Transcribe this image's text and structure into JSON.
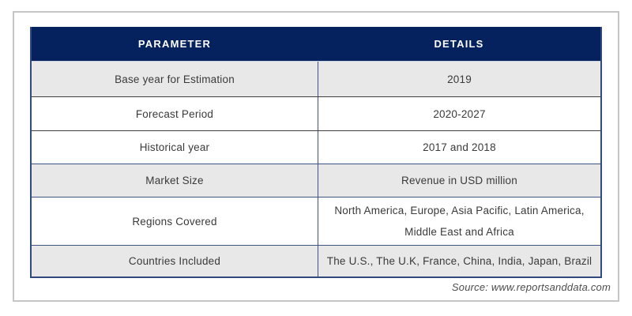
{
  "page": {
    "source_attribution": "Source: www.reportsanddata.com"
  },
  "table": {
    "header": {
      "parameter": "PARAMETER",
      "details": "DETAILS"
    },
    "rows": [
      {
        "parameter": "Base year for Estimation",
        "details": "2019"
      },
      {
        "parameter": "Forecast Period",
        "details": "2020-2027"
      },
      {
        "parameter": "Historical year",
        "details": "2017 and 2018"
      },
      {
        "parameter": "Market Size",
        "details": "Revenue in USD million"
      },
      {
        "parameter": "Regions Covered",
        "details": "North America, Europe, Asia Pacific, Latin America, Middle East and Africa"
      },
      {
        "parameter": "Countries Included",
        "details": "The U.S., The  U.K, France, China, India, Japan, Brazil"
      }
    ]
  },
  "colors": {
    "header_bg": "#05215e",
    "header_text": "#ffffff",
    "row_gray": "#e8e8e8",
    "row_white": "#ffffff",
    "border_navy": "#3d5382",
    "border_dark": "#3f3f3f",
    "table_outline": "#32497c",
    "frame_border": "#c6c6c6",
    "cell_text": "#3a3a3a",
    "source_text": "#4d4d4d"
  },
  "chart_data": {
    "type": "table",
    "title": "Report scope parameters",
    "columns": [
      "PARAMETER",
      "DETAILS"
    ],
    "rows": [
      [
        "Base year for Estimation",
        "2019"
      ],
      [
        "Forecast Period",
        "2020-2027"
      ],
      [
        "Historical year",
        "2017 and 2018"
      ],
      [
        "Market Size",
        "Revenue in USD million"
      ],
      [
        "Regions Covered",
        "North America, Europe, Asia Pacific, Latin America, Middle East and Africa"
      ],
      [
        "Countries Included",
        "The U.S., The  U.K, France, China, India, Japan, Brazil"
      ]
    ],
    "source": "Source: www.reportsanddata.com",
    "layout_hints": {
      "header_style": "navy background, white uppercase text",
      "shaded_rows_gray": [
        0,
        3,
        5
      ],
      "two_line_row": 4
    }
  }
}
